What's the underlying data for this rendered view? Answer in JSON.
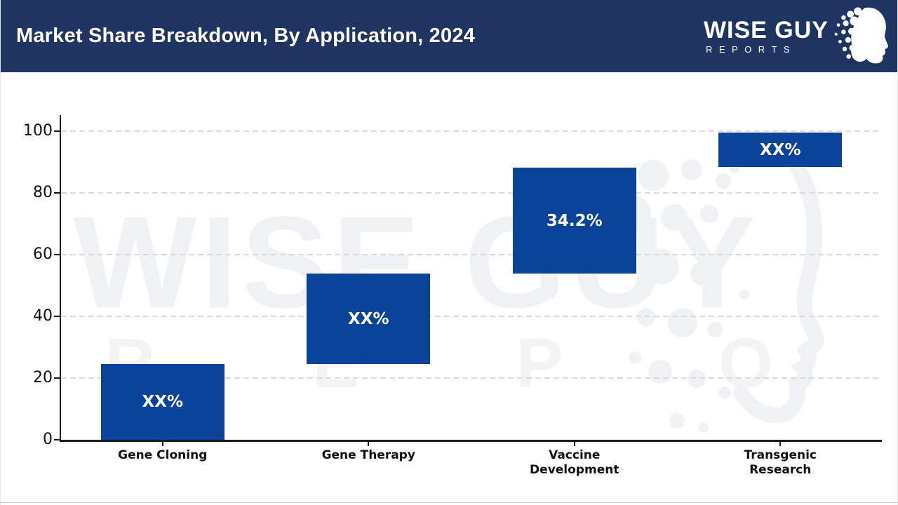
{
  "header": {
    "title": "Market Share Breakdown, By Application, 2024",
    "bg_color": "#203462",
    "logo": {
      "line1": "WISE GUY",
      "line2": "REPORTS"
    }
  },
  "watermark": {
    "line1": "WISE GUY",
    "line2": "R E P O R T S"
  },
  "chart_data": {
    "type": "bar",
    "subtype": "waterfall",
    "title": "Market Share Breakdown, By Application, 2024",
    "xlabel": "",
    "ylabel": "",
    "ylim": [
      0,
      105
    ],
    "yticks": [
      0,
      20,
      40,
      60,
      80,
      100
    ],
    "grid": "dashed-horizontal",
    "legend": "none",
    "bar_color": "#0a4399",
    "label_color": "#ffffff",
    "categories": [
      "Gene Cloning",
      "Gene Therapy",
      "Vaccine Development",
      "Transgenic Research"
    ],
    "segments": [
      {
        "category": "Gene Cloning",
        "category_lines": [
          "Gene Cloning"
        ],
        "from": 0,
        "to": 24.5,
        "value_label": "XX%"
      },
      {
        "category": "Gene Therapy",
        "category_lines": [
          "Gene Therapy"
        ],
        "from": 24.5,
        "to": 53.9,
        "value_label": "XX%"
      },
      {
        "category": "Vaccine Development",
        "category_lines": [
          "Vaccine",
          "Development"
        ],
        "from": 53.9,
        "to": 88.1,
        "value_label": "34.2%"
      },
      {
        "category": "Transgenic Research",
        "category_lines": [
          "Transgenic",
          "Research"
        ],
        "from": 88.3,
        "to": 99.5,
        "value_label": "XX%"
      }
    ]
  }
}
